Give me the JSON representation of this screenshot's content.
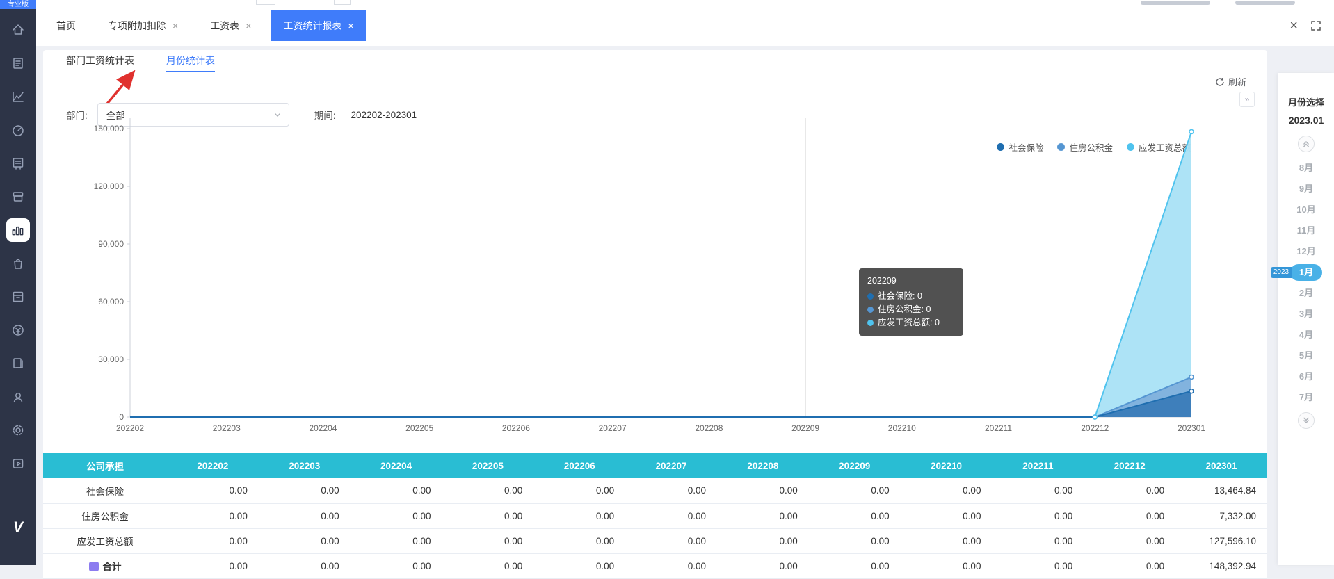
{
  "app": {
    "edition_badge": "专业版",
    "brand": "V"
  },
  "icons": {
    "close": "×",
    "collapse": "»"
  },
  "sidebar": {
    "icons": [
      "home",
      "voucher",
      "ledger",
      "dashboard",
      "invoice",
      "assets",
      "reports",
      "tax",
      "archive",
      "salary",
      "docs",
      "contacts",
      "settings",
      "apps"
    ],
    "active": "reports"
  },
  "tabs": [
    {
      "label": "首页",
      "closable": false,
      "active": false
    },
    {
      "label": "专项附加扣除",
      "closable": true,
      "active": false
    },
    {
      "label": "工资表",
      "closable": true,
      "active": false
    },
    {
      "label": "工资统计报表",
      "closable": true,
      "active": true
    }
  ],
  "subtabs": [
    {
      "label": "部门工资统计表",
      "active": false
    },
    {
      "label": "月份统计表",
      "active": true
    }
  ],
  "toolbar": {
    "refresh_label": "刷新"
  },
  "filters": {
    "dept_label": "部门:",
    "dept_value": "全部",
    "period_label": "期间:",
    "period_value": "202202-202301"
  },
  "chart_data": {
    "type": "stacked-area",
    "title": "",
    "categories": [
      "202202",
      "202203",
      "202204",
      "202205",
      "202206",
      "202207",
      "202208",
      "202209",
      "202210",
      "202211",
      "202212",
      "202301"
    ],
    "series": [
      {
        "name": "社会保险",
        "color": "#1f6eb0",
        "fill": "#3a7cb8",
        "values": [
          0,
          0,
          0,
          0,
          0,
          0,
          0,
          0,
          0,
          0,
          0,
          13464.84
        ]
      },
      {
        "name": "住房公积金",
        "color": "#5596d2",
        "fill": "#7fb0dc",
        "values": [
          0,
          0,
          0,
          0,
          0,
          0,
          0,
          0,
          0,
          0,
          0,
          7332.0
        ]
      },
      {
        "name": "应发工资总额",
        "color": "#4fc3ee",
        "fill": "#a9e1f6",
        "values": [
          0,
          0,
          0,
          0,
          0,
          0,
          0,
          0,
          0,
          0,
          0,
          127596.1
        ]
      }
    ],
    "ylim": [
      0,
      150000
    ],
    "y_ticks": [
      0,
      30000,
      60000,
      90000,
      120000,
      150000
    ],
    "grid": false,
    "legend_position": "top-right",
    "crosshair_x": "202209"
  },
  "tooltip": {
    "title": "202209",
    "rows": [
      {
        "label": "社会保险",
        "value": "0"
      },
      {
        "label": "住房公积金",
        "value": "0"
      },
      {
        "label": "应发工资总额",
        "value": "0"
      }
    ]
  },
  "table": {
    "header": [
      "公司承担",
      "202202",
      "202203",
      "202204",
      "202205",
      "202206",
      "202207",
      "202208",
      "202209",
      "202210",
      "202211",
      "202212",
      "202301"
    ],
    "rows": [
      {
        "label": "社会保险",
        "is_total": false,
        "values": [
          "0.00",
          "0.00",
          "0.00",
          "0.00",
          "0.00",
          "0.00",
          "0.00",
          "0.00",
          "0.00",
          "0.00",
          "0.00",
          "13,464.84"
        ]
      },
      {
        "label": "住房公积金",
        "is_total": false,
        "values": [
          "0.00",
          "0.00",
          "0.00",
          "0.00",
          "0.00",
          "0.00",
          "0.00",
          "0.00",
          "0.00",
          "0.00",
          "0.00",
          "7,332.00"
        ]
      },
      {
        "label": "应发工资总额",
        "is_total": false,
        "values": [
          "0.00",
          "0.00",
          "0.00",
          "0.00",
          "0.00",
          "0.00",
          "0.00",
          "0.00",
          "0.00",
          "0.00",
          "0.00",
          "127,596.10"
        ]
      },
      {
        "label": "合计",
        "is_total": true,
        "values": [
          "0.00",
          "0.00",
          "0.00",
          "0.00",
          "0.00",
          "0.00",
          "0.00",
          "0.00",
          "0.00",
          "0.00",
          "0.00",
          "148,392.94"
        ]
      }
    ]
  },
  "month_panel": {
    "title": "月份选择",
    "current": "2023.01",
    "year_badge": "2023",
    "months": [
      "8月",
      "9月",
      "10月",
      "11月",
      "12月",
      "1月",
      "2月",
      "3月",
      "4月",
      "5月",
      "6月",
      "7月"
    ],
    "active_month": "1月"
  }
}
